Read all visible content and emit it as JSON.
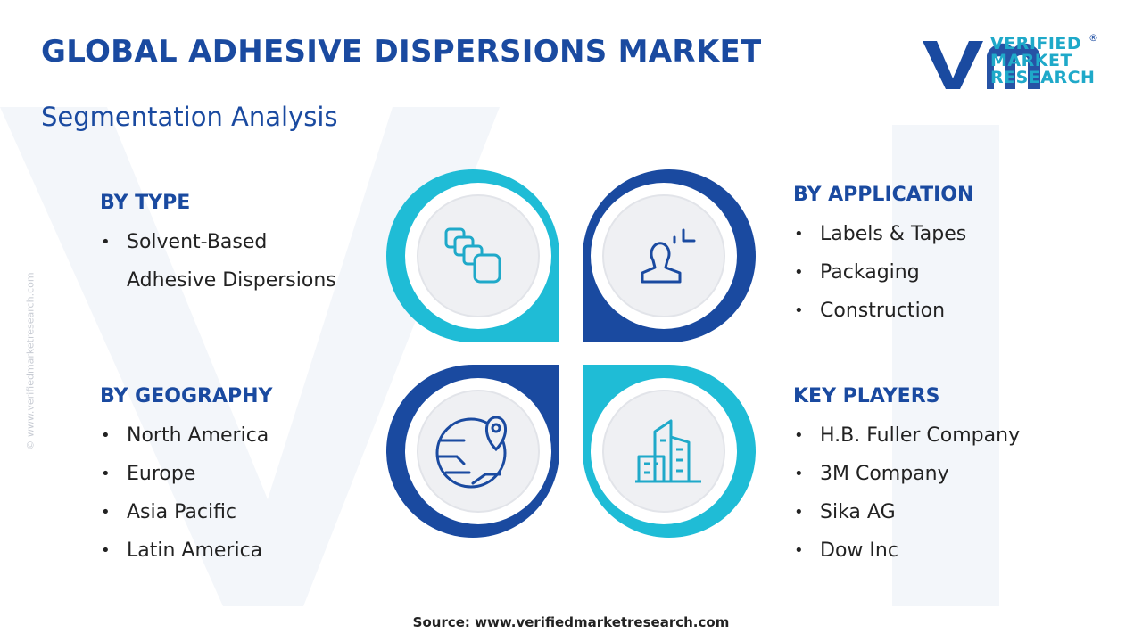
{
  "header": {
    "title": "GLOBAL ADHESIVE DISPERSIONS MARKET",
    "subtitle": "Segmentation Analysis"
  },
  "logo": {
    "line1": "VERIFIED",
    "line2": "MARKET",
    "line3": "RESEARCH",
    "mark": "®"
  },
  "watermark": "© www.verifiedmarketresearch.com",
  "sections": [
    {
      "heading": "BY TYPE",
      "items": [
        "Solvent-Based Adhesive Dispersions"
      ]
    },
    {
      "heading": "BY APPLICATION",
      "items": [
        "Labels & Tapes",
        "Packaging",
        "Construction"
      ]
    },
    {
      "heading": "BY GEOGRAPHY",
      "items": [
        "North America",
        "Europe",
        "Asia Pacific",
        "Latin America"
      ]
    },
    {
      "heading": "KEY PLAYERS",
      "items": [
        "H.B. Fuller Company",
        "3M Company",
        "Sika AG",
        "Dow Inc"
      ]
    }
  ],
  "source": "Source: www.verifiedmarketresearch.com"
}
